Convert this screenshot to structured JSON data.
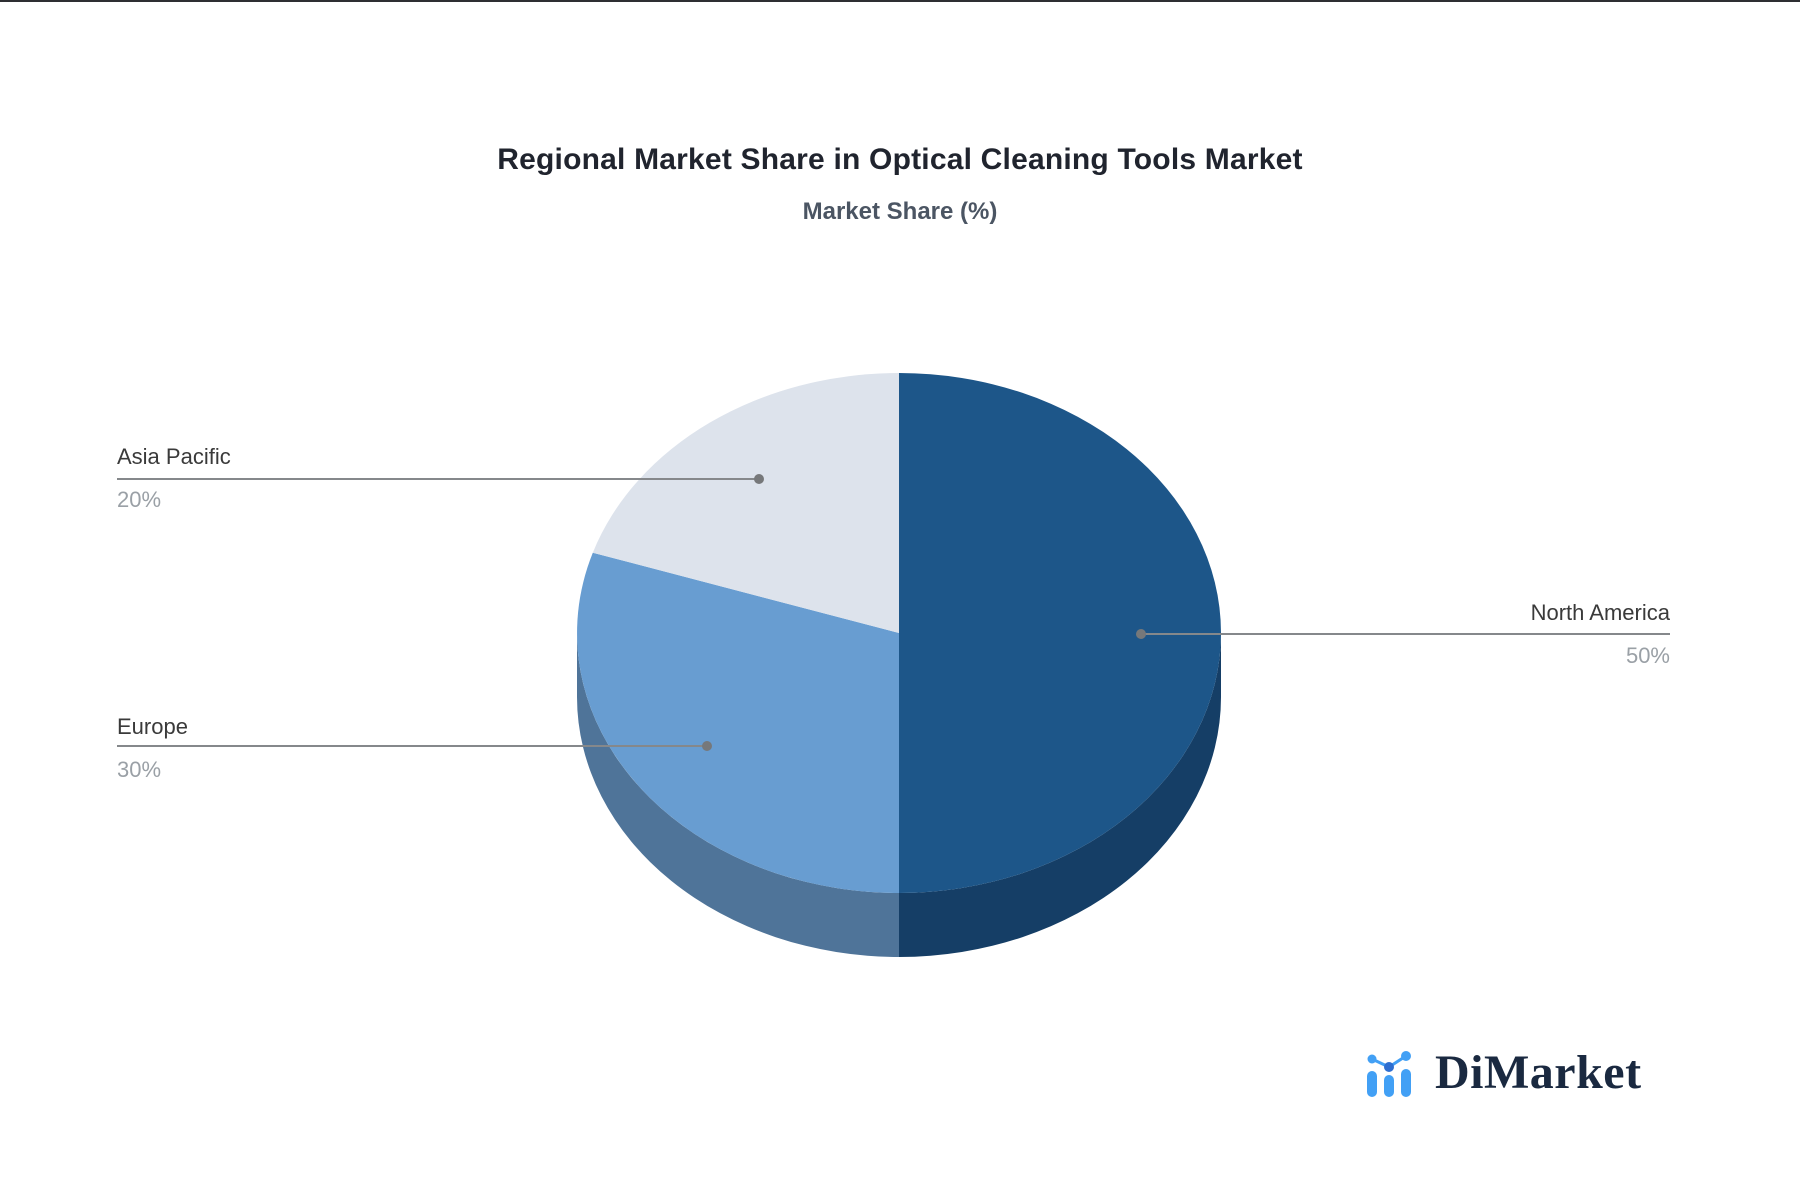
{
  "page": {
    "background": "#ffffff",
    "title": "Regional Market Share in Optical Cleaning Tools Market",
    "subtitle": "Market Share (%)"
  },
  "chart_data": {
    "type": "pie",
    "style": "3d-depth",
    "title": "Regional Market Share in Optical Cleaning Tools Market",
    "subtitle": "Market Share (%)",
    "unit": "%",
    "start_angle": "12-oclock",
    "direction": "clockwise",
    "legend_position": "external-callout-labels",
    "slices": [
      {
        "label": "North America",
        "value": 50,
        "display": "50%",
        "color": "#1d5689",
        "side_color": "#153e66",
        "callout_side": "right"
      },
      {
        "label": "Europe",
        "value": 30,
        "display": "30%",
        "color": "#689dd1",
        "side_color": "#4f7499",
        "callout_side": "left"
      },
      {
        "label": "Asia Pacific",
        "value": 20,
        "display": "20%",
        "color": "#dde3ec",
        "side_color": "#b9c6d8",
        "callout_side": "left"
      }
    ],
    "callout_line_color": "#85888b",
    "callout_dot_color": "#76787a",
    "label_color": "#3a3a3a",
    "value_color": "#9aa0a6"
  },
  "brand": {
    "name": "DiMarket",
    "icon": "bar-line-chart-icon",
    "text_color": "#1a2940",
    "accent_color": "#42a0f5",
    "accent_dark": "#2e6ed0"
  }
}
